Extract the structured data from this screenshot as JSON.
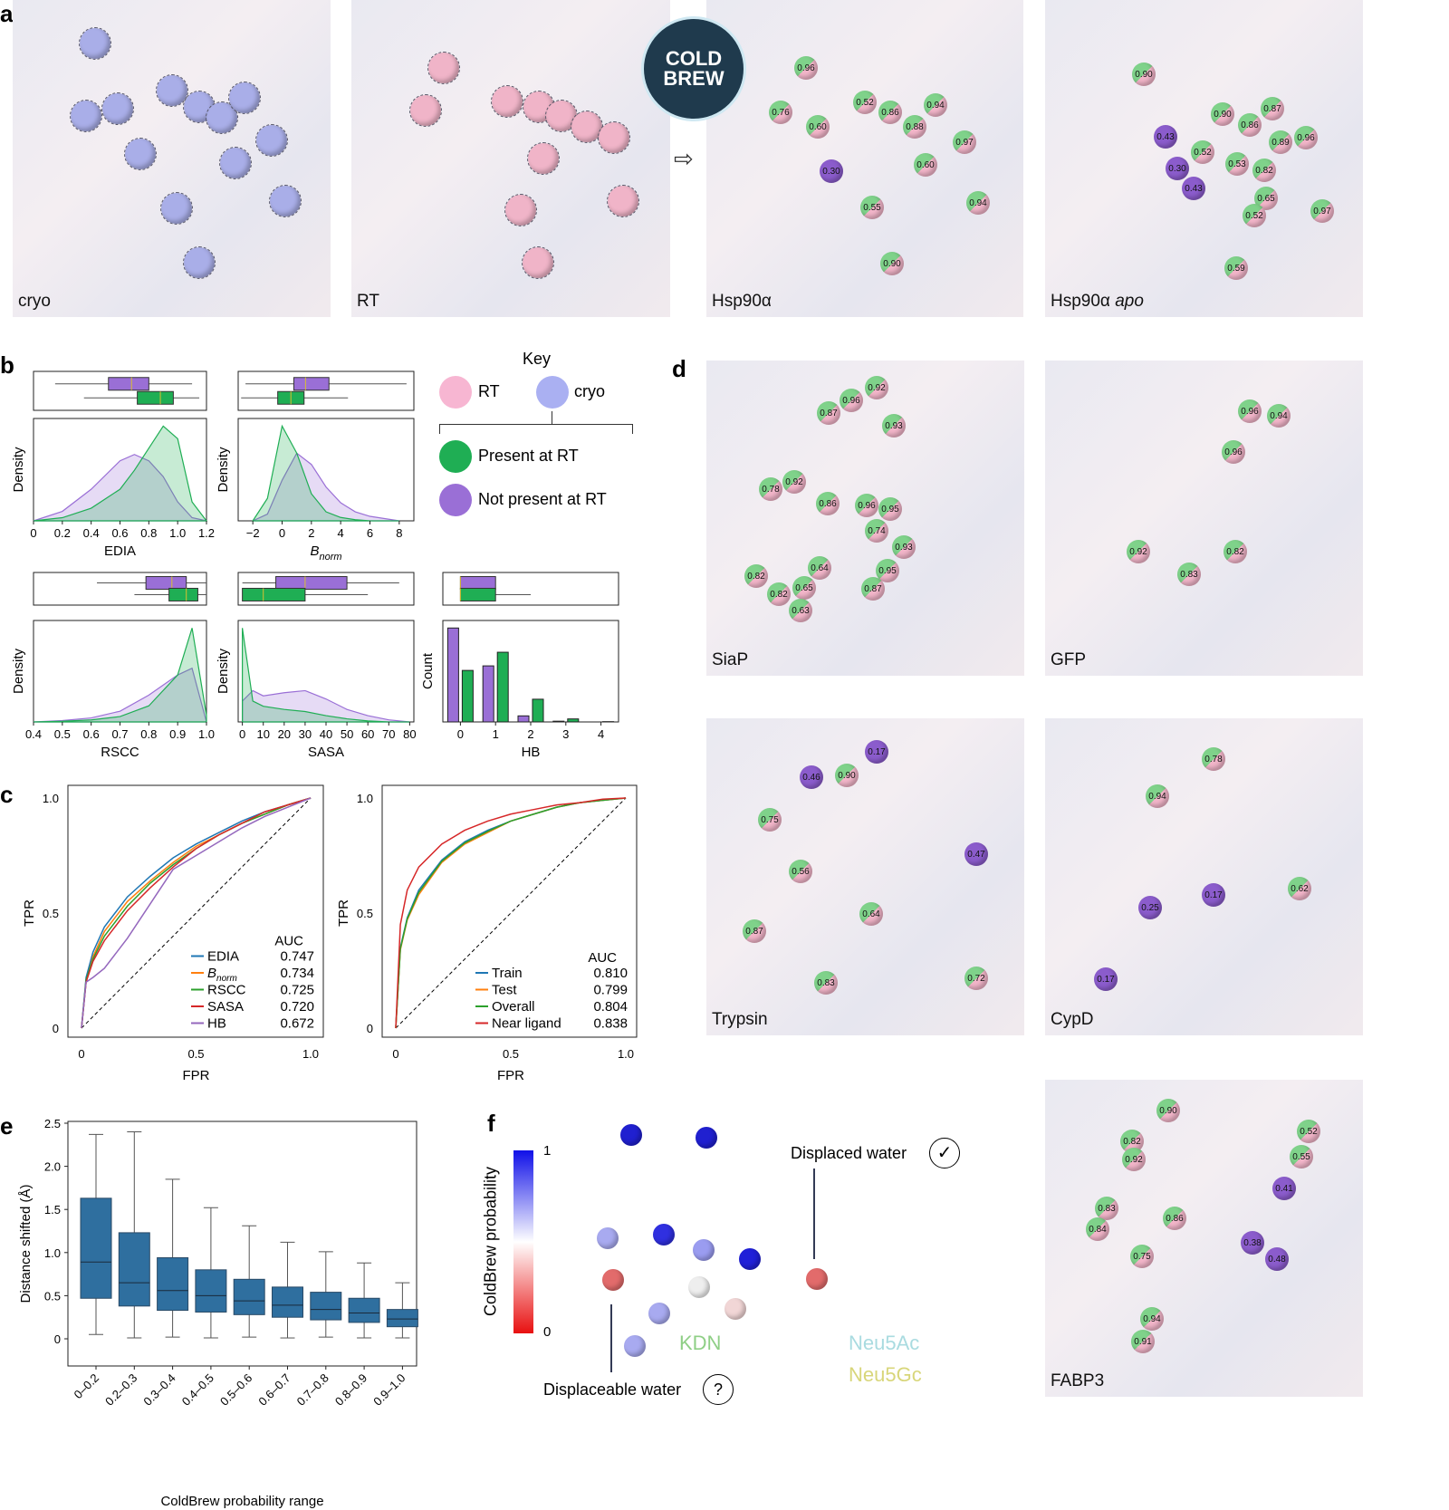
{
  "panel_letters": {
    "a": "a",
    "b": "b",
    "c": "c",
    "d": "d",
    "e": "e",
    "f": "f"
  },
  "logo_text": "COLD BREW",
  "arrow_icon": "hollow-right-arrow",
  "panel_a": [
    {
      "caption": "cryo",
      "caption_italic": "",
      "density_color": "#a9aee8"
    },
    {
      "caption": "RT",
      "caption_italic": "",
      "density_color": "#f0b4c8"
    },
    {
      "caption": "Hsp90α",
      "caption_italic": "",
      "waters": [
        "0.96",
        "0.76",
        "0.60",
        "0.52",
        "0.86",
        "0.88",
        "0.94",
        "0.97",
        "0.30",
        "0.60",
        "0.55",
        "0.94",
        "0.90"
      ]
    },
    {
      "caption": "Hsp90α ",
      "caption_italic": "apo",
      "waters": [
        "0.90",
        "0.90",
        "0.86",
        "0.87",
        "0.43",
        "0.30",
        "0.52",
        "0.43",
        "0.53",
        "0.82",
        "0.89",
        "0.96",
        "0.65",
        "0.52",
        "0.97",
        "0.59"
      ]
    }
  ],
  "panel_d": [
    {
      "caption": "SiaP",
      "waters": [
        "0.92",
        "0.96",
        "0.87",
        "0.93",
        "0.78",
        "0.92",
        "0.86",
        "0.96",
        "0.95",
        "0.74",
        "0.93",
        "0.95",
        "0.87",
        "0.82",
        "0.64",
        "0.65",
        "0.82",
        "0.63"
      ]
    },
    {
      "caption": "GFP",
      "waters": [
        "0.96",
        "0.94",
        "0.96",
        "0.92",
        "0.83",
        "0.82"
      ]
    },
    {
      "caption": "Trypsin",
      "waters": [
        "0.17",
        "0.46",
        "0.90",
        "0.75",
        "0.56",
        "0.47",
        "0.64",
        "0.87",
        "0.83",
        "0.72"
      ]
    },
    {
      "caption": "CypD",
      "waters": [
        "0.78",
        "0.94",
        "0.25",
        "0.17",
        "0.62",
        "0.17"
      ]
    },
    {
      "caption": "FABP3",
      "waters": [
        "0.90",
        "0.82",
        "0.92",
        "0.52",
        "0.55",
        "0.41",
        "0.83",
        "0.84",
        "0.86",
        "0.75",
        "0.38",
        "0.48",
        "0.94",
        "0.91"
      ]
    }
  ],
  "key": {
    "title": "Key",
    "rt": "RT",
    "cryo": "cryo",
    "present": "Present at RT",
    "not_present": "Not present at RT",
    "colors": {
      "rt": "#f7b6d2",
      "cryo": "#aab0f2",
      "present": "#1fae54",
      "not_present": "#9a6fd6"
    }
  },
  "chart_data": [
    {
      "type": "area",
      "panel": "b",
      "xlabel": "EDIA",
      "xlabel_sub": "",
      "ylabel": "Density",
      "xlim": [
        0,
        1.2
      ],
      "xticks": [
        "0",
        "0.2",
        "0.4",
        "0.6",
        "0.8",
        "1.0",
        "1.2"
      ],
      "xtick_values": [
        0,
        0.2,
        0.4,
        0.6,
        0.8,
        1.0,
        1.2
      ],
      "x": [
        0,
        0.2,
        0.4,
        0.6,
        0.7,
        0.8,
        0.9,
        1.0,
        1.1,
        1.2
      ],
      "series": [
        {
          "color": "#9a6fd6",
          "values": [
            0,
            0.3,
            1.0,
            1.9,
            2.1,
            1.9,
            1.4,
            0.6,
            0.1,
            0
          ],
          "box": [
            0.52,
            0.68,
            0.8,
            0.15,
            1.1
          ]
        },
        {
          "color": "#1fae54",
          "values": [
            0,
            0.1,
            0.4,
            1.0,
            1.6,
            2.3,
            3.0,
            2.6,
            0.6,
            0
          ],
          "box": [
            0.72,
            0.88,
            0.97,
            0.35,
            1.15
          ]
        }
      ]
    },
    {
      "type": "area",
      "panel": "b",
      "xlabel": "B",
      "xlabel_sub": "norm",
      "ylabel": "Density",
      "xlim": [
        -3,
        9
      ],
      "xticks": [
        "−2",
        "0",
        "2",
        "4",
        "6",
        "8"
      ],
      "xtick_values": [
        -2,
        0,
        2,
        4,
        6,
        8
      ],
      "x": [
        -2,
        -1,
        0,
        1,
        2,
        3,
        4,
        5,
        6,
        8
      ],
      "series": [
        {
          "color": "#9a6fd6",
          "values": [
            0,
            0.03,
            0.18,
            0.3,
            0.25,
            0.15,
            0.08,
            0.04,
            0.02,
            0
          ],
          "box": [
            0.8,
            1.6,
            3.2,
            -2.5,
            8.5
          ]
        },
        {
          "color": "#1fae54",
          "values": [
            0,
            0.1,
            0.42,
            0.3,
            0.12,
            0.04,
            0.015,
            0.005,
            0,
            0
          ],
          "box": [
            -0.3,
            0.6,
            1.5,
            -2.8,
            4.5
          ]
        }
      ]
    },
    {
      "type": "area",
      "panel": "b",
      "xlabel": "RSCC",
      "xlabel_sub": "",
      "ylabel": "Density",
      "xlim": [
        0.4,
        1.0
      ],
      "xticks": [
        "0.4",
        "0.5",
        "0.6",
        "0.7",
        "0.8",
        "0.9",
        "1.0"
      ],
      "xtick_values": [
        0.4,
        0.5,
        0.6,
        0.7,
        0.8,
        0.9,
        1.0
      ],
      "x": [
        0.4,
        0.5,
        0.6,
        0.7,
        0.8,
        0.9,
        0.95,
        1.0
      ],
      "series": [
        {
          "color": "#9a6fd6",
          "values": [
            0,
            0.1,
            0.3,
            0.8,
            2,
            3.5,
            4,
            0
          ],
          "box": [
            0.79,
            0.88,
            0.93,
            0.62,
            1.0
          ]
        },
        {
          "color": "#1fae54",
          "values": [
            0,
            0.05,
            0.15,
            0.4,
            1.2,
            3.5,
            7,
            0.5
          ],
          "box": [
            0.87,
            0.93,
            0.97,
            0.75,
            1.0
          ]
        }
      ]
    },
    {
      "type": "area",
      "panel": "b",
      "xlabel": "SASA",
      "xlabel_sub": "",
      "ylabel": "Density",
      "xlim": [
        -2,
        82
      ],
      "xticks": [
        "0",
        "10",
        "20",
        "30",
        "40",
        "50",
        "60",
        "70",
        "80"
      ],
      "xtick_values": [
        0,
        10,
        20,
        30,
        40,
        50,
        60,
        70,
        80
      ],
      "x": [
        0,
        5,
        10,
        20,
        30,
        40,
        50,
        60,
        70,
        80
      ],
      "series": [
        {
          "color": "#9a6fd6",
          "values": [
            0.02,
            0.03,
            0.025,
            0.028,
            0.03,
            0.022,
            0.012,
            0.006,
            0.002,
            0
          ],
          "box": [
            16,
            30,
            50,
            0,
            75
          ]
        },
        {
          "color": "#1fae54",
          "values": [
            0.09,
            0.02,
            0.015,
            0.012,
            0.01,
            0.006,
            0.003,
            0.001,
            0,
            0
          ],
          "box": [
            0,
            10,
            30,
            0,
            60
          ]
        }
      ]
    },
    {
      "type": "bar",
      "panel": "b",
      "xlabel": "HB",
      "xlabel_sub": "",
      "ylabel": "Count",
      "xlim": [
        -0.5,
        4.5
      ],
      "xticks": [
        "0",
        "1",
        "2",
        "3",
        "4"
      ],
      "xtick_values": [
        0,
        1,
        2,
        3,
        4
      ],
      "categories": [
        0,
        1,
        2,
        3,
        4
      ],
      "series": [
        {
          "color": "#9a6fd6",
          "values": [
            0.62,
            0.37,
            0.04,
            0.005,
            0
          ],
          "box": [
            0,
            0,
            1,
            0,
            1
          ]
        },
        {
          "color": "#1fae54",
          "values": [
            0.34,
            0.46,
            0.15,
            0.02,
            0.002
          ],
          "box": [
            0,
            0,
            1,
            0,
            2
          ]
        }
      ]
    },
    {
      "type": "line",
      "panel": "c",
      "xlabel": "FPR",
      "ylabel": "TPR",
      "xlim": [
        0,
        1
      ],
      "ylim": [
        0,
        1
      ],
      "xticks": [
        "0",
        "0.5",
        "1.0"
      ],
      "yticks": [
        "0",
        "0.5",
        "1.0"
      ],
      "legend_title": "AUC",
      "legend": "bottom-right",
      "x": [
        0,
        0.02,
        0.05,
        0.1,
        0.2,
        0.3,
        0.4,
        0.5,
        0.6,
        0.7,
        0.8,
        0.9,
        1.0
      ],
      "series": [
        {
          "name": "EDIA",
          "name_sub": "",
          "auc": "0.747",
          "color": "#1f77b4",
          "values": [
            0,
            0.22,
            0.33,
            0.44,
            0.57,
            0.66,
            0.74,
            0.8,
            0.85,
            0.9,
            0.94,
            0.97,
            1
          ]
        },
        {
          "name": "B",
          "name_sub": "norm",
          "auc": "0.734",
          "color": "#ff7f0e",
          "values": [
            0,
            0.2,
            0.31,
            0.42,
            0.55,
            0.64,
            0.72,
            0.79,
            0.84,
            0.89,
            0.93,
            0.97,
            1
          ]
        },
        {
          "name": "RSCC",
          "name_sub": "",
          "auc": "0.725",
          "color": "#2ca02c",
          "values": [
            0,
            0.21,
            0.3,
            0.4,
            0.53,
            0.63,
            0.71,
            0.78,
            0.84,
            0.89,
            0.93,
            0.97,
            1
          ]
        },
        {
          "name": "SASA",
          "name_sub": "",
          "auc": "0.720",
          "color": "#d62728",
          "values": [
            0,
            0.2,
            0.29,
            0.38,
            0.51,
            0.61,
            0.7,
            0.78,
            0.84,
            0.89,
            0.94,
            0.97,
            1
          ]
        },
        {
          "name": "HB",
          "name_sub": "",
          "auc": "0.672",
          "color": "#9467bd",
          "values": [
            0,
            0.2,
            0.22,
            0.26,
            0.39,
            0.54,
            0.69,
            0.75,
            0.81,
            0.87,
            0.92,
            0.96,
            1
          ]
        }
      ]
    },
    {
      "type": "line",
      "panel": "c",
      "xlabel": "FPR",
      "ylabel": "TPR",
      "xlim": [
        0,
        1
      ],
      "ylim": [
        0,
        1
      ],
      "xticks": [
        "0",
        "0.5",
        "1.0"
      ],
      "yticks": [
        "0",
        "0.5",
        "1.0"
      ],
      "legend_title": "AUC",
      "legend": "bottom-right",
      "x": [
        0,
        0.02,
        0.05,
        0.1,
        0.2,
        0.3,
        0.4,
        0.5,
        0.6,
        0.7,
        0.8,
        0.9,
        1.0
      ],
      "series": [
        {
          "name": "Train",
          "name_sub": "",
          "auc": "0.810",
          "color": "#1f77b4",
          "values": [
            0,
            0.35,
            0.48,
            0.6,
            0.73,
            0.81,
            0.86,
            0.9,
            0.93,
            0.96,
            0.98,
            0.99,
            1
          ]
        },
        {
          "name": "Test",
          "name_sub": "",
          "auc": "0.799",
          "color": "#ff7f0e",
          "values": [
            0,
            0.34,
            0.47,
            0.58,
            0.72,
            0.8,
            0.85,
            0.9,
            0.93,
            0.96,
            0.98,
            0.99,
            1
          ]
        },
        {
          "name": "Overall",
          "name_sub": "",
          "auc": "0.804",
          "color": "#2ca02c",
          "values": [
            0,
            0.345,
            0.475,
            0.59,
            0.725,
            0.805,
            0.855,
            0.9,
            0.93,
            0.96,
            0.98,
            0.99,
            1
          ]
        },
        {
          "name": "Near ligand",
          "name_sub": "",
          "auc": "0.838",
          "color": "#d62728",
          "values": [
            0,
            0.45,
            0.6,
            0.7,
            0.8,
            0.86,
            0.9,
            0.93,
            0.95,
            0.97,
            0.98,
            0.995,
            1
          ]
        }
      ]
    },
    {
      "type": "box",
      "panel": "e",
      "xlabel": "ColdBrew probability range",
      "ylabel": "Distance shifted (Å)",
      "ylim": [
        -0.1,
        2.5
      ],
      "yticks": [
        "0",
        "0.5",
        "1.0",
        "1.5",
        "2.0",
        "2.5"
      ],
      "ytick_values": [
        0,
        0.5,
        1,
        1.5,
        2,
        2.5
      ],
      "categories": [
        "0–0.2",
        "0.2–0.3",
        "0.3–0.4",
        "0.4–0.5",
        "0.5–0.6",
        "0.6–0.7",
        "0.7–0.8",
        "0.8–0.9",
        "0.9–1.0"
      ],
      "color": "#2f6f9f",
      "boxes": [
        [
          0.05,
          0.47,
          0.89,
          1.63,
          2.37
        ],
        [
          0.01,
          0.38,
          0.65,
          1.23,
          2.4
        ],
        [
          0.02,
          0.33,
          0.56,
          0.94,
          1.85
        ],
        [
          0.01,
          0.31,
          0.5,
          0.8,
          1.52
        ],
        [
          0.02,
          0.28,
          0.44,
          0.69,
          1.31
        ],
        [
          0.01,
          0.25,
          0.39,
          0.6,
          1.12
        ],
        [
          0.02,
          0.22,
          0.34,
          0.54,
          1.01
        ],
        [
          0.01,
          0.19,
          0.3,
          0.47,
          0.88
        ],
        [
          0.01,
          0.14,
          0.23,
          0.34,
          0.65
        ]
      ]
    }
  ],
  "panel_f": {
    "colorbar_label": "ColdBrew probability",
    "colorbar_max": "1",
    "colorbar_min": "0",
    "kdn": "KDN",
    "neu5ac": "Neu5Ac",
    "neu5gc": "Neu5Gc",
    "displaced": "Displaced water",
    "displaceable": "Displaceable water",
    "check_icon": "✓",
    "question_icon": "?",
    "colors": {
      "kdn": "#8fcf86",
      "neu5ac": "#a9dbe0",
      "neu5gc": "#d8d67a"
    }
  }
}
